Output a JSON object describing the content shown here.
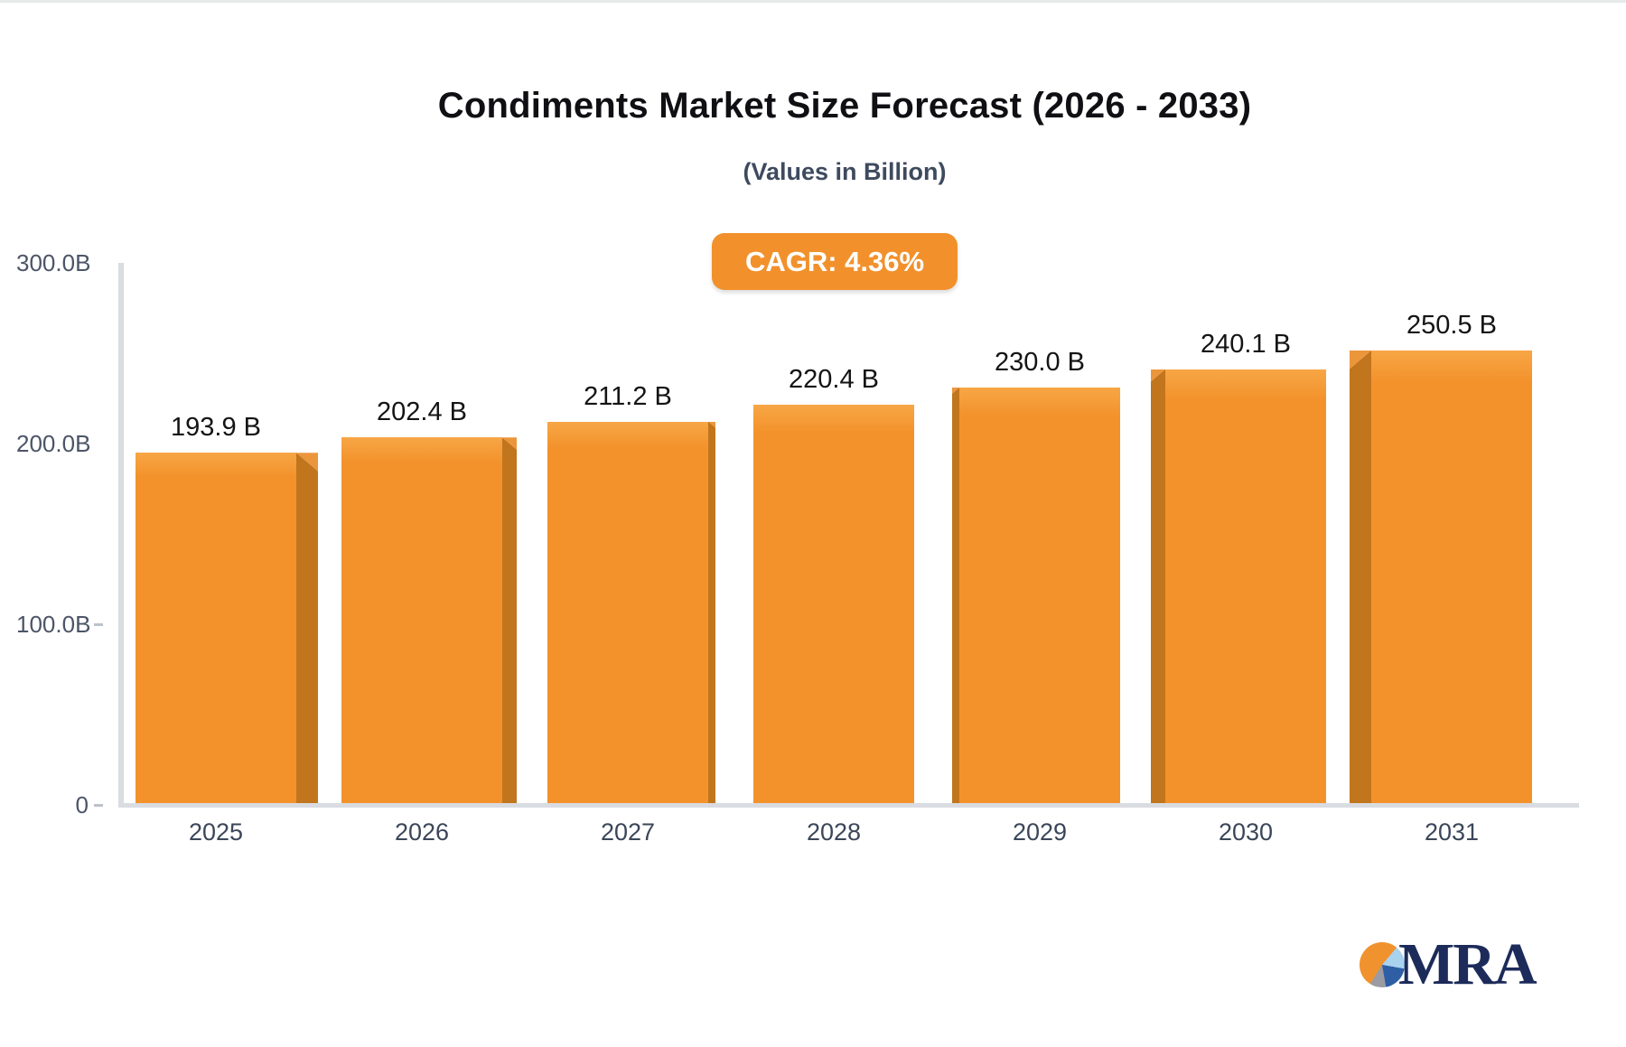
{
  "chart_data": {
    "type": "bar",
    "title": "Condiments Market Size Forecast (2026 - 2033)",
    "subtitle": "(Values in Billion)",
    "annotation": "CAGR: 4.36%",
    "categories": [
      "2025",
      "2026",
      "2027",
      "2028",
      "2029",
      "2030",
      "2031"
    ],
    "values": [
      193.9,
      202.4,
      211.2,
      220.4,
      230.0,
      240.1,
      250.5
    ],
    "bar_labels": [
      "193.9 B",
      "202.4 B",
      "211.2 B",
      "220.4 B",
      "230.0 B",
      "240.1 B",
      "250.5 B"
    ],
    "y_ticks": [
      {
        "label": "300.0B",
        "value": 300,
        "dash": false
      },
      {
        "label": "200.0B",
        "value": 200,
        "dash": false
      },
      {
        "label": "100.0B",
        "value": 100,
        "dash": true
      },
      {
        "label": "0",
        "value": 0,
        "dash": true
      }
    ],
    "ylim": [
      0,
      300
    ],
    "grid": false,
    "legend": false,
    "colors": {
      "bar_front": "#F3922B",
      "bar_front_top": "#F7A646",
      "bar_side": "#C1751D",
      "bar_bevel": "#EC963C",
      "axis": "#D9DCE1",
      "accent": "#F2912C"
    }
  },
  "logo": {
    "text": "MRA",
    "pie_colors": {
      "orange": "#F0922E",
      "light_blue": "#A9D2EF",
      "dark_blue": "#2E5EA4",
      "gray": "#9A9BA3"
    }
  }
}
